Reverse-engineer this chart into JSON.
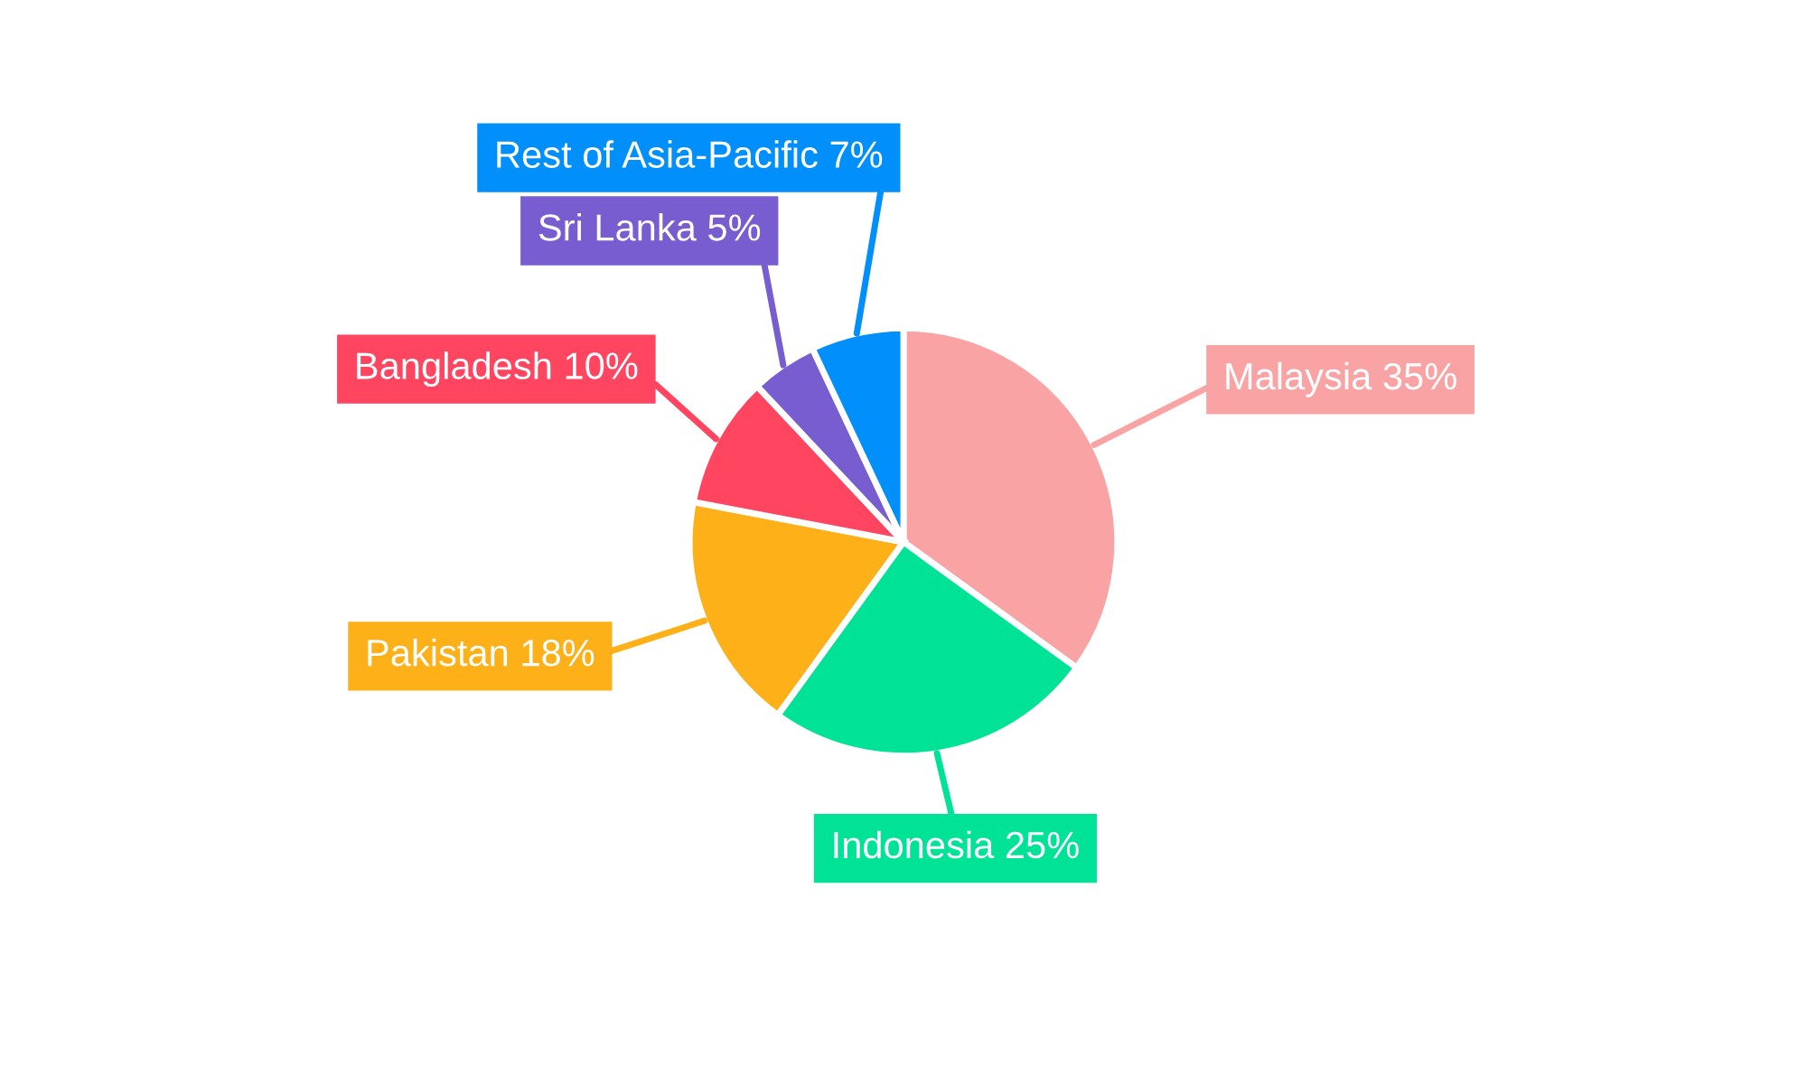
{
  "chart_data": {
    "type": "pie",
    "categories": [
      "Malaysia",
      "Indonesia",
      "Pakistan",
      "Bangladesh",
      "Sri Lanka",
      "Rest of Asia-Pacific"
    ],
    "values": [
      35,
      25,
      18,
      10,
      5,
      7
    ],
    "value_labels": [
      "35%",
      "25%",
      "18%",
      "10%",
      "5%",
      "7%"
    ],
    "colors": [
      "#f9a3a4",
      "#00e396",
      "#feb019",
      "#ff4560",
      "#775dd0",
      "#008ffb"
    ]
  }
}
